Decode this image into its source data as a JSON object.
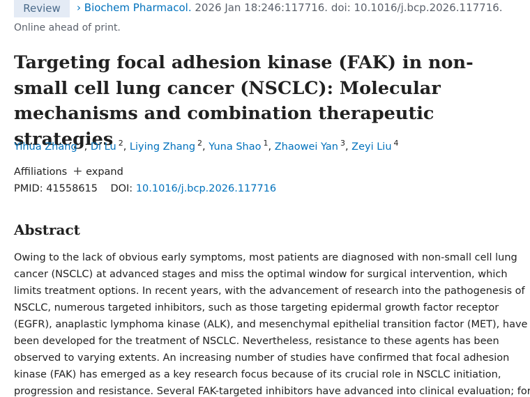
{
  "header": {
    "badge": "Review",
    "journal": "Biochem Pharmacol.",
    "citation": "2026 Jan 18:246:117716. doi: 10.1016/j.bcp.2026.117716.",
    "status": "Online ahead of print."
  },
  "article": {
    "title": "Targeting focal adhesion kinase (FAK) in non-small cell lung cancer (NSCLC): Molecular mechanisms and combination therapeutic strategies",
    "author_separator": ",",
    "authors": [
      {
        "name": "Yihua Zhang",
        "aff": "1"
      },
      {
        "name": "Di Lu",
        "aff": "2"
      },
      {
        "name": "Liying Zhang",
        "aff": "2"
      },
      {
        "name": "Yuna Shao",
        "aff": "1"
      },
      {
        "name": "Zhaowei Yan",
        "aff": "3"
      },
      {
        "name": "Zeyi Liu",
        "aff": "4"
      }
    ],
    "affiliations_label": "Affiliations",
    "expand_label": "expand",
    "pmid_label": "PMID:",
    "pmid": "41558615",
    "doi_label": "DOI:",
    "doi": "10.1016/j.bcp.2026.117716"
  },
  "abstract": {
    "heading": "Abstract",
    "lines": [
      "Owing to the lack of obvious early symptoms, most patients are diagnosed with non-small cell lung",
      "cancer (NSCLC) at advanced stages and miss the optimal window for surgical intervention, which",
      "limits treatment options. In recent years, with the advancement of research into the pathogenesis of",
      "NSCLC, numerous targeted inhibitors, such as those targeting epidermal growth factor receptor",
      "(EGFR), anaplastic lymphoma kinase (ALK), and mesenchymal epithelial transition factor (MET), have",
      "been developed for the treatment of NSCLC. Nevertheless, resistance to these agents has been",
      "observed to varying extents. An increasing number of studies have confirmed that focal adhesion",
      "kinase (FAK) has emerged as a key research focus because of its crucial role in NSCLC initiation,",
      "progression and resistance. Several FAK-targeted inhibitors have advanced into clinical evaluation; for"
    ]
  }
}
